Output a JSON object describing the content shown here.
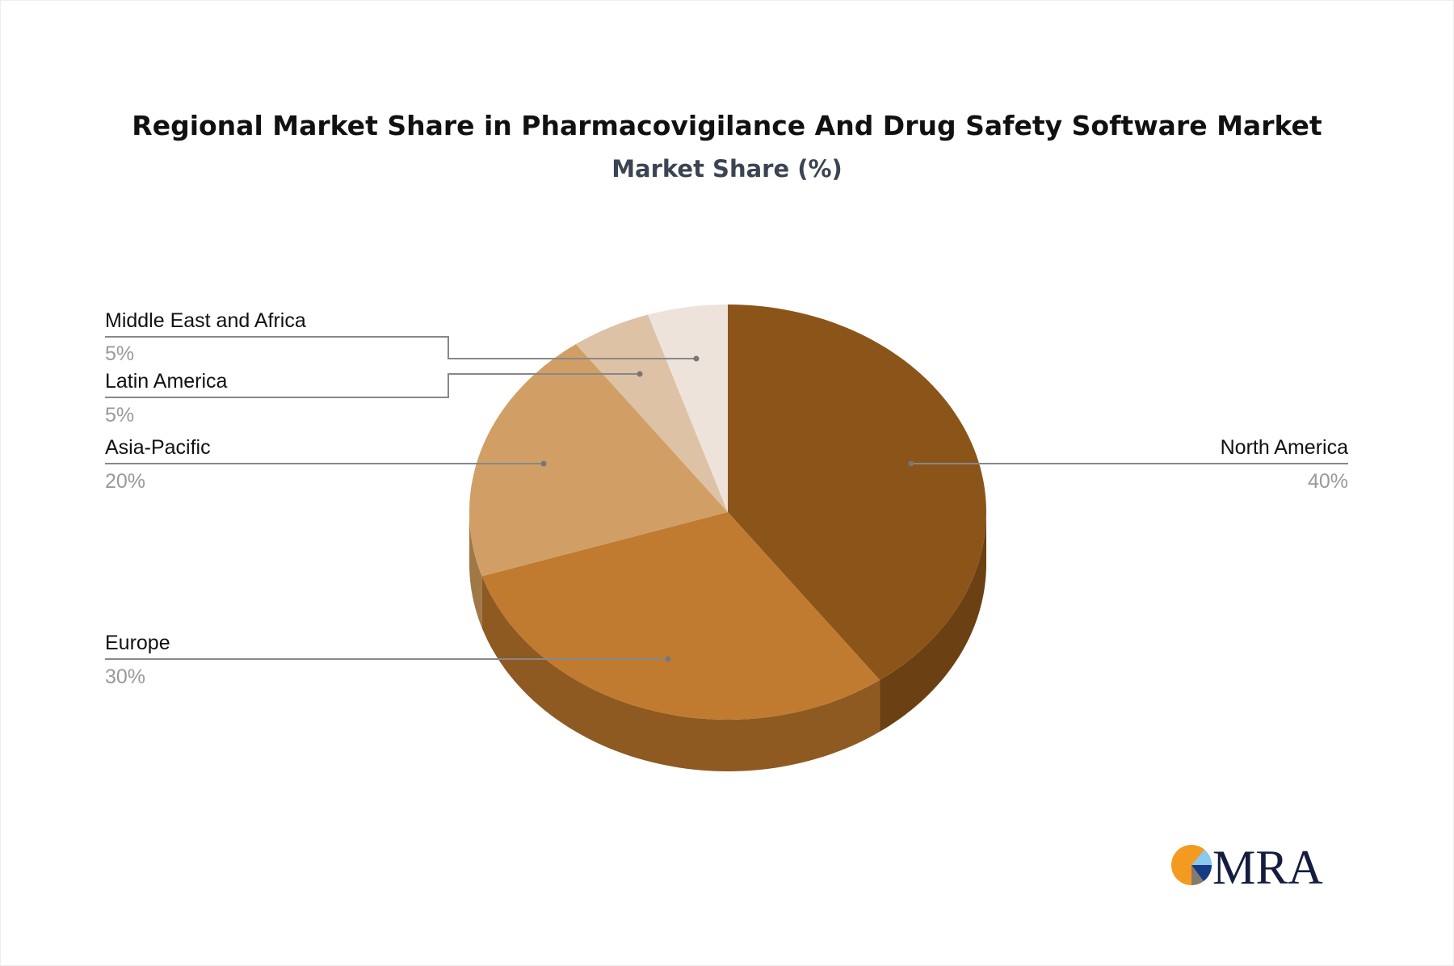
{
  "chart_data": {
    "type": "pie",
    "title": "Regional Market Share in Pharmacovigilance And Drug Safety Software Market",
    "subtitle": "Market Share (%)",
    "style": "3d",
    "categories": [
      "North America",
      "Europe",
      "Asia-Pacific",
      "Latin America",
      "Middle East and Africa"
    ],
    "values": [
      40,
      30,
      20,
      5,
      5
    ],
    "value_labels": [
      "40%",
      "30%",
      "20%",
      "5%",
      "5%"
    ],
    "colors": [
      "#8B5519",
      "#C07B30",
      "#D19F66",
      "#DDC2A5",
      "#EEE3DA"
    ],
    "side_colors": [
      "#6B4013",
      "#8E5A22",
      "#A07848",
      "#A8927C",
      "#B5ABA3"
    ]
  },
  "logo": {
    "text": "MRA",
    "colors": [
      "#F39A21",
      "#8AC8EE",
      "#173A84",
      "#857A6E",
      "#141C3F"
    ]
  }
}
